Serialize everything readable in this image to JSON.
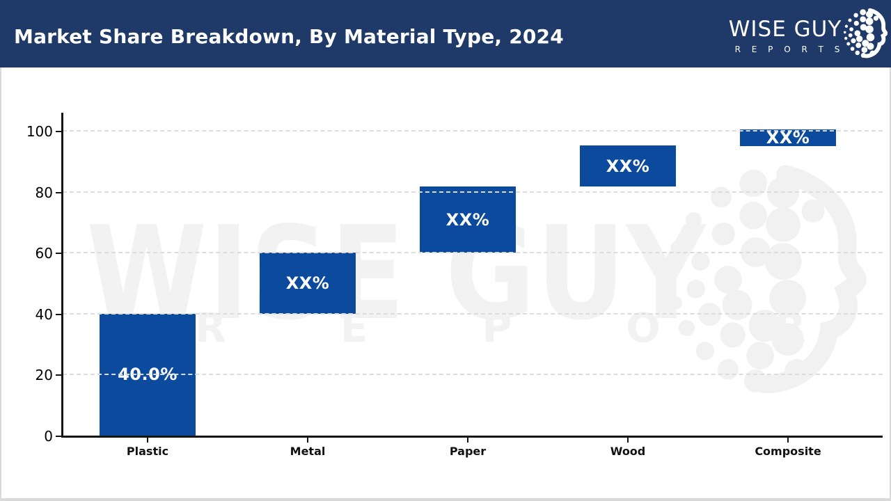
{
  "header": {
    "title": "Market Share Breakdown, By Material Type, 2024",
    "background_color": "#1F3A68",
    "logo": {
      "name": "WISE GUY",
      "sub": "R E P O R T S"
    }
  },
  "watermark": {
    "name": "WISE GUY",
    "sub": "R E P O R T S"
  },
  "chart_data": {
    "type": "bar",
    "variant": "waterfall",
    "title": "Market Share Breakdown, By Material Type, 2024",
    "categories": [
      "Plastic",
      "Metal",
      "Paper",
      "Wood",
      "Composite"
    ],
    "segments": [
      {
        "category": "Plastic",
        "start": 0,
        "end": 40,
        "label": "40.0%"
      },
      {
        "category": "Metal",
        "start": 40,
        "end": 60,
        "label": "XX%"
      },
      {
        "category": "Paper",
        "start": 60,
        "end": 81.7,
        "label": "XX%"
      },
      {
        "category": "Wood",
        "start": 81.8,
        "end": 95.1,
        "label": "XX%"
      },
      {
        "category": "Composite",
        "start": 95,
        "end": 100.4,
        "label": "XX%"
      }
    ],
    "yticks": [
      0,
      20,
      40,
      60,
      80,
      100
    ],
    "ylim": [
      0,
      105.5
    ],
    "xlabel": "",
    "ylabel": "",
    "grid": "horizontal-dashed",
    "grid_over_bars": true,
    "legend": "none",
    "bar_color": "#0C4A9E",
    "bar_label_color": "#FFFFFF",
    "axis_color": "#141414"
  }
}
